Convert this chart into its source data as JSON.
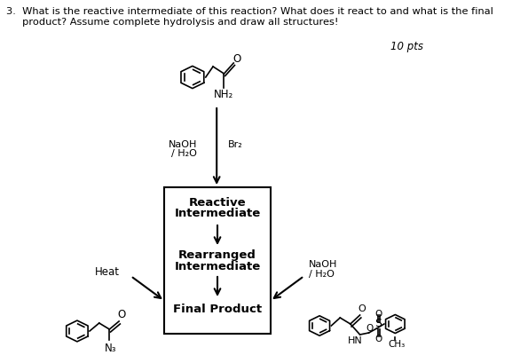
{
  "title_line1": "3.  What is the reactive intermediate of this reaction? What does it react to and what is the final",
  "title_line2": "     product? Assume complete hydrolysis and draw all structures!",
  "pts_text": "10 pts",
  "background_color": "#ffffff",
  "text_color": "#000000",
  "box_label1": "Reactive\nIntermediate",
  "box_label2": "Rearranged\nIntermediate",
  "box_label3": "Final Product",
  "reagent_naoh": "NaOH",
  "reagent_h2o": "/ H₂O",
  "reagent_br2": "Br₂",
  "label_heat": "Heat",
  "amine_label": "NH₂",
  "azide_label": "N₃",
  "hn_label": "HN",
  "figw": 5.86,
  "figh": 4.1,
  "dpi": 100
}
